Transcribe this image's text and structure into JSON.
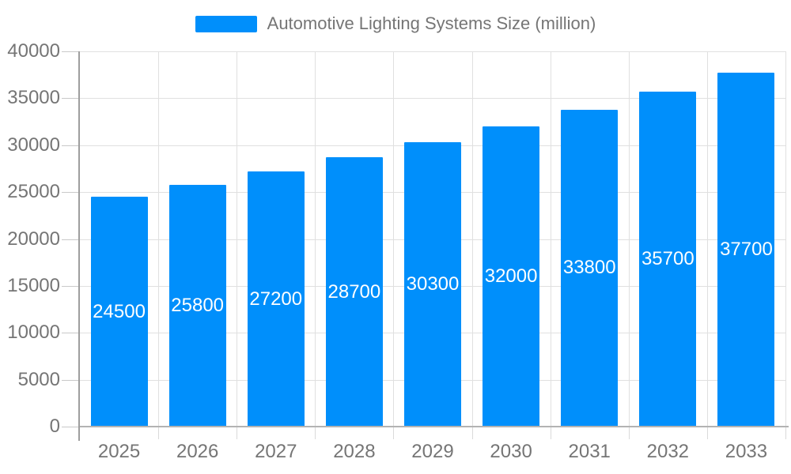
{
  "chart_data": {
    "type": "bar",
    "title": "Automotive Lighting Systems Size (million)",
    "categories": [
      "2025",
      "2026",
      "2027",
      "2028",
      "2029",
      "2030",
      "2031",
      "2032",
      "2033"
    ],
    "values": [
      24500,
      25800,
      27200,
      28700,
      30300,
      32000,
      33800,
      35700,
      37700
    ],
    "series": [
      {
        "name": "Automotive Lighting Systems Size (million)",
        "values": [
          24500,
          25800,
          27200,
          28700,
          30300,
          32000,
          33800,
          35700,
          37700
        ]
      }
    ],
    "data_labels": [
      "24500",
      "25800",
      "27200",
      "28700",
      "30300",
      "32000",
      "33800",
      "35700",
      "37700"
    ],
    "xlabel": "",
    "ylabel": "",
    "ylim": [
      0,
      40000
    ],
    "yticks": [
      0,
      5000,
      10000,
      15000,
      20000,
      25000,
      30000,
      35000,
      40000
    ],
    "ytick_labels": [
      "0",
      "5000",
      "10000",
      "15000",
      "20000",
      "25000",
      "30000",
      "35000",
      "40000"
    ],
    "grid": true,
    "legend_position": "top",
    "colors": {
      "bar": "#008FFB",
      "axis_text": "#757575",
      "grid": "#e0e0e0",
      "y_axis_line": "#9e9e9e",
      "x_axis_line": "#b3b3b3",
      "data_label": "#ffffff"
    }
  }
}
